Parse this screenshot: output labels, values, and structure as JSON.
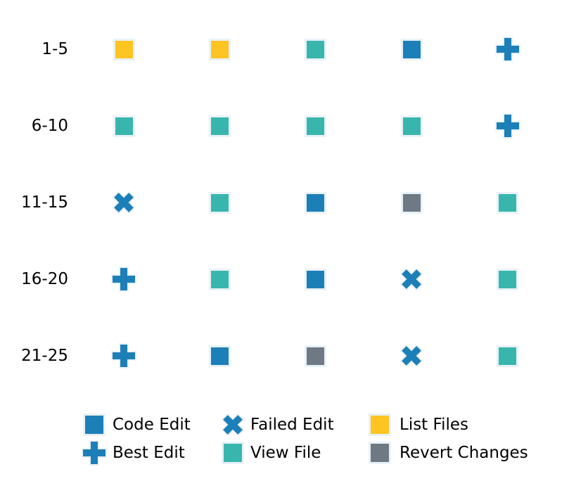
{
  "chart_data": {
    "type": "scatter",
    "title": "",
    "xlabel": "",
    "ylabel": "",
    "description": "Categorical marker grid showing agent action type at each step, grouped in buckets of 5 steps per row",
    "row_labels": [
      "1-5",
      "6-10",
      "11-15",
      "16-20",
      "21-25"
    ],
    "columns_per_row": 5,
    "grid": [
      [
        "List Files",
        "List Files",
        "View File",
        "Code Edit",
        "Best Edit"
      ],
      [
        "View File",
        "View File",
        "View File",
        "View File",
        "Best Edit"
      ],
      [
        "Failed Edit",
        "View File",
        "Code Edit",
        "Revert Changes",
        "View File"
      ],
      [
        "Best Edit",
        "View File",
        "Code Edit",
        "Failed Edit",
        "View File"
      ],
      [
        "Best Edit",
        "Code Edit",
        "Revert Changes",
        "Failed Edit",
        "View File"
      ]
    ],
    "marker_styles": {
      "Code Edit": {
        "marker": "square",
        "color": "#1d7fb8"
      },
      "Best Edit": {
        "marker": "plus",
        "color": "#1d7fb8"
      },
      "Failed Edit": {
        "marker": "x",
        "color": "#1d7fb8"
      },
      "View File": {
        "marker": "square",
        "color": "#38b6ad"
      },
      "List Files": {
        "marker": "square",
        "color": "#fdc422"
      },
      "Revert Changes": {
        "marker": "square",
        "color": "#6e7983"
      }
    },
    "legend_entries": [
      "Code Edit",
      "Failed Edit",
      "List Files",
      "Best Edit",
      "View File",
      "Revert Changes"
    ],
    "legend_position": "lower center",
    "legend_columns": 3,
    "grid_lines": false,
    "background_color": "#ffffff",
    "marker_edge_color": "#e9f2f7",
    "text_color": "#000000"
  },
  "layout": {
    "row_y_centers": [
      70,
      179,
      288,
      397,
      506
    ],
    "col_x_centers": [
      176,
      312.5,
      448.5,
      585,
      721.5
    ],
    "row_label_right_edge": 97,
    "legend_row_y_centers": [
      604,
      644
    ],
    "legend_marker_x_centers": [
      134,
      331,
      540
    ],
    "legend_label_x_lefts": [
      160,
      356,
      568
    ]
  }
}
